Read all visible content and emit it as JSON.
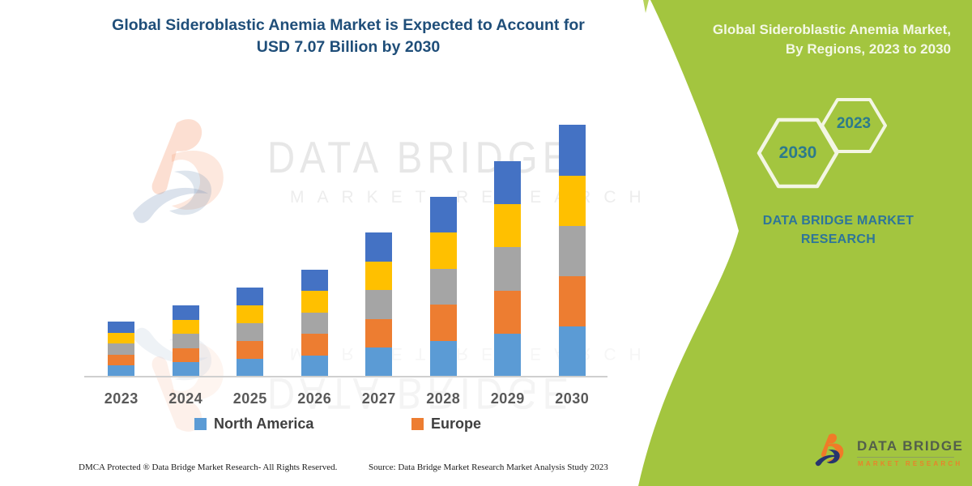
{
  "header": {
    "title_line1": "Global Sideroblastic Anemia Market is Expected to Account for",
    "title_line2": "USD 7.07 Billion by 2030",
    "title_color": "#1F4E79"
  },
  "sidebar": {
    "bg_color": "#A3C53F",
    "heading_line1": "Global Sideroblastic Anemia Market,",
    "heading_line2": "By Regions, 2023 to 2030",
    "hexagons": [
      {
        "label": "2030"
      },
      {
        "label": "2023"
      }
    ],
    "hex_text_color": "#2C7A8C",
    "brand_line1": "DATA BRIDGE MARKET",
    "brand_line2": "RESEARCH",
    "brand_color": "#2E7599",
    "logo": {
      "name": "DATA BRIDGE",
      "subtitle": "MARKET RESEARCH"
    }
  },
  "watermark": {
    "line1": "DATA BRIDGE",
    "line2": "MARKET RESEARCH"
  },
  "legend": [
    {
      "label": "North America",
      "color": "#5B9BD5"
    },
    {
      "label": "Europe",
      "color": "#ED7D31"
    }
  ],
  "chart_data": {
    "type": "bar",
    "stacked": true,
    "title": "Global Sideroblastic Anemia Market is Expected to Account for USD 7.07 Billion by 2030",
    "unit": "USD Billion",
    "categories": [
      "2023",
      "2024",
      "2025",
      "2026",
      "2027",
      "2028",
      "2029",
      "2030"
    ],
    "totals_estimated": [
      1.55,
      2.0,
      2.5,
      3.0,
      4.05,
      5.05,
      6.05,
      7.07
    ],
    "series": [
      {
        "name": "North America",
        "color": "#5B9BD5",
        "values": [
          0.31,
          0.4,
          0.5,
          0.6,
          0.81,
          1.01,
          1.21,
          1.41
        ]
      },
      {
        "name": "Europe",
        "color": "#ED7D31",
        "values": [
          0.31,
          0.4,
          0.5,
          0.6,
          0.81,
          1.01,
          1.21,
          1.41
        ]
      },
      {
        "name": "unlabeled-gray",
        "color": "#A5A5A5",
        "values": [
          0.31,
          0.4,
          0.5,
          0.6,
          0.81,
          1.01,
          1.21,
          1.41
        ]
      },
      {
        "name": "unlabeled-yellow",
        "color": "#FFC000",
        "values": [
          0.31,
          0.4,
          0.5,
          0.6,
          0.81,
          1.01,
          1.21,
          1.42
        ]
      },
      {
        "name": "unlabeled-darkblue",
        "color": "#4472C4",
        "values": [
          0.31,
          0.4,
          0.5,
          0.6,
          0.81,
          1.01,
          1.21,
          1.42
        ]
      }
    ],
    "ylim": [
      0,
      7.5
    ],
    "gridlines": false,
    "y_axis_shown": false,
    "legend_position": "bottom",
    "axis_line_color": "#CFCFCF",
    "x_label_color": "#595959"
  },
  "footer": {
    "left": "DMCA Protected ® Data Bridge Market Research-  All Rights Reserved.",
    "right": "Source: Data Bridge Market Research  Market Analysis Study 2023"
  }
}
